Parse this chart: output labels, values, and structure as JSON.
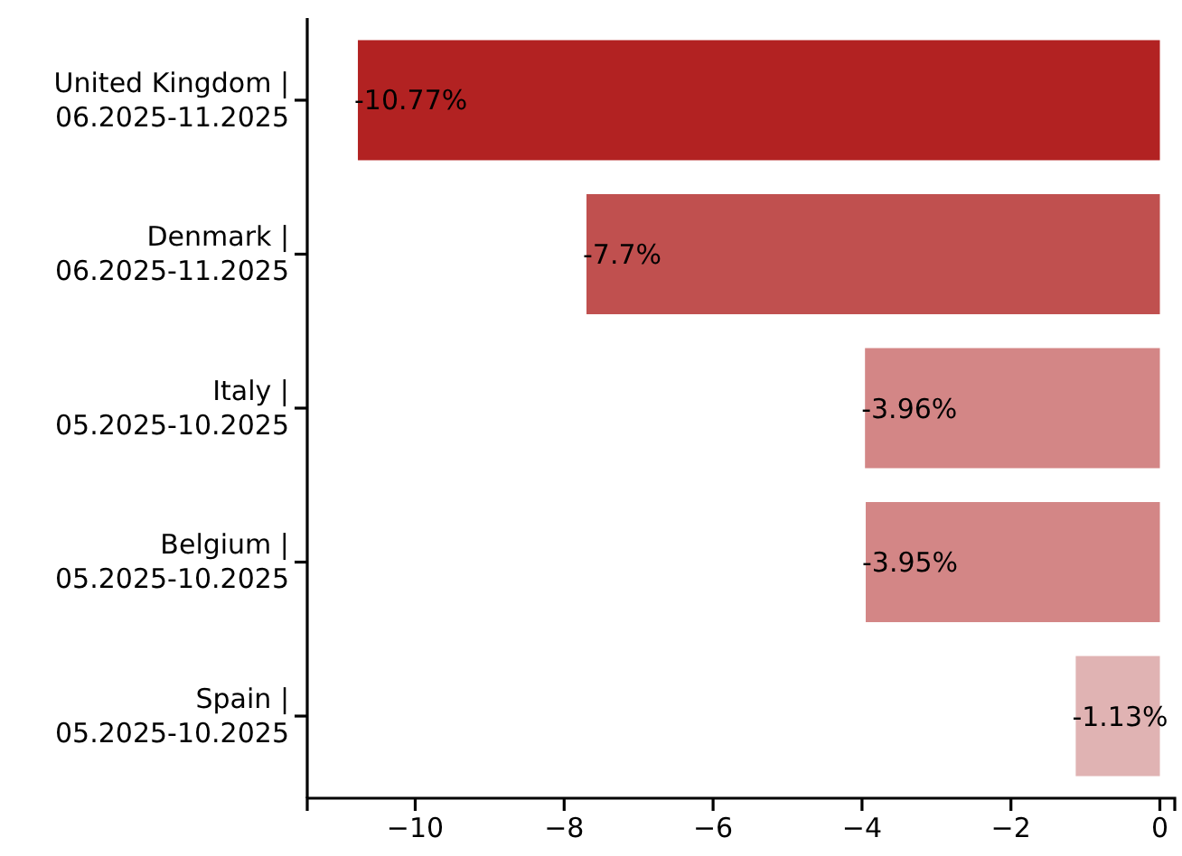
{
  "chart_data": {
    "type": "bar",
    "orientation": "horizontal",
    "categories": [
      "United Kingdom | 06.2025-11.2025",
      "Denmark | 06.2025-11.2025",
      "Italy | 05.2025-10.2025",
      "Belgium | 05.2025-10.2025",
      "Spain | 05.2025-10.2025"
    ],
    "values": [
      -10.77,
      -7.7,
      -3.96,
      -3.95,
      -1.13
    ],
    "colors": [
      "#b22222",
      "#c0504f",
      "#d38686",
      "#d38686",
      "#e0b3b3"
    ],
    "value_labels": [
      "-10.77%",
      "-7.7%",
      "-3.96%",
      "-3.95%",
      "-1.13%"
    ],
    "xlim": [
      -11.45,
      0.2
    ],
    "xticks": [
      {
        "value": -10,
        "label": "−10"
      },
      {
        "value": -8,
        "label": "−8"
      },
      {
        "value": -6,
        "label": "−6"
      },
      {
        "value": -4,
        "label": "−4"
      },
      {
        "value": -2,
        "label": "−2"
      },
      {
        "value": 0,
        "label": "0"
      }
    ],
    "grid": false
  }
}
